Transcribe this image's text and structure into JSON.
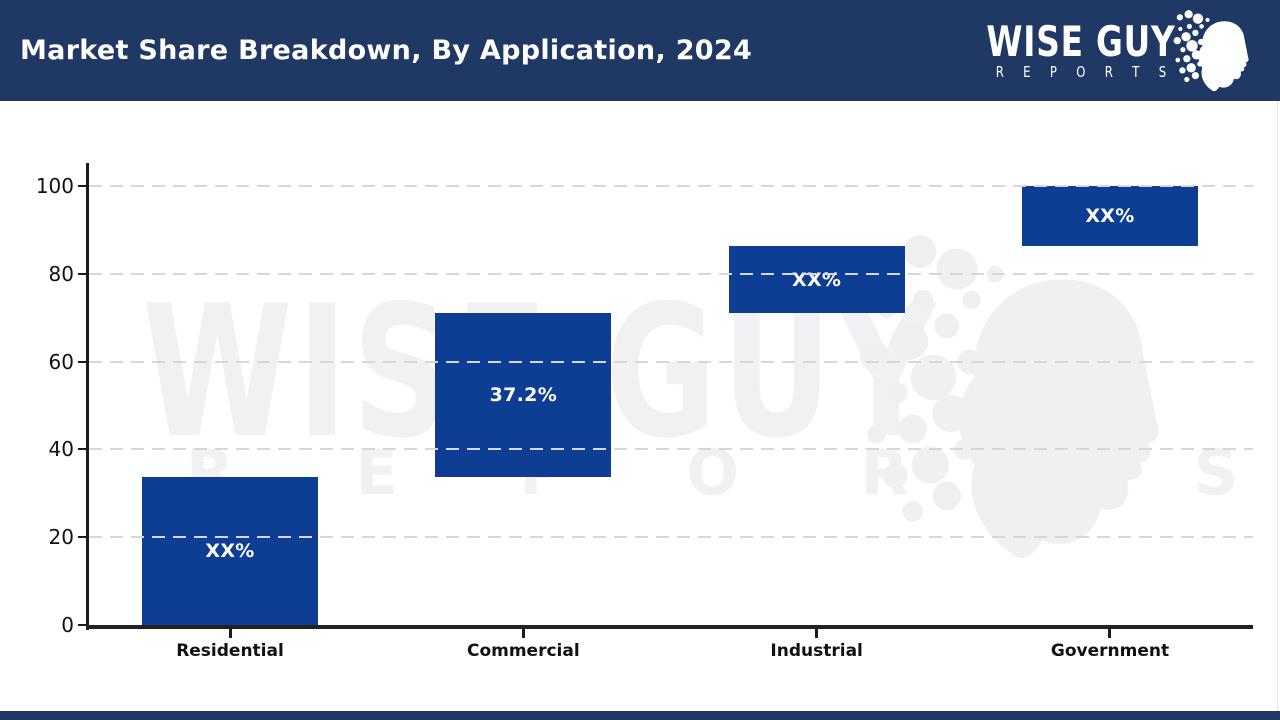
{
  "header": {
    "title": "Market Share Breakdown, By Application, 2024",
    "logo": {
      "line1": "WISE GUY",
      "line2": "R E P O R T S"
    }
  },
  "watermark": {
    "line1": "WISE GUY",
    "line2": "R E P O R T S"
  },
  "colors": {
    "header_bg": "#203864",
    "bar": "#0d3e94",
    "bar_label": "#ffffff",
    "grid": "#d7d7d9",
    "axis": "#1c1c1c",
    "watermark": "#f1f1f3"
  },
  "chart_data": {
    "type": "bar",
    "subtype": "waterfall",
    "title": "Market Share Breakdown, By Application, 2024",
    "xlabel": "",
    "ylabel": "",
    "categories": [
      "Residential",
      "Commercial",
      "Industrial",
      "Government"
    ],
    "bars": [
      {
        "category": "Residential",
        "start": 0,
        "end": 33.8,
        "label": "XX%"
      },
      {
        "category": "Commercial",
        "start": 33.8,
        "end": 71.0,
        "label": "37.2%"
      },
      {
        "category": "Industrial",
        "start": 71.0,
        "end": 86.4,
        "label": "XX%"
      },
      {
        "category": "Government",
        "start": 86.4,
        "end": 100.0,
        "label": "XX%"
      }
    ],
    "ylim": [
      0,
      100
    ],
    "yticks": [
      0,
      20,
      40,
      60,
      80,
      100
    ],
    "grid": "horizontal-dashed",
    "legend": "none"
  }
}
